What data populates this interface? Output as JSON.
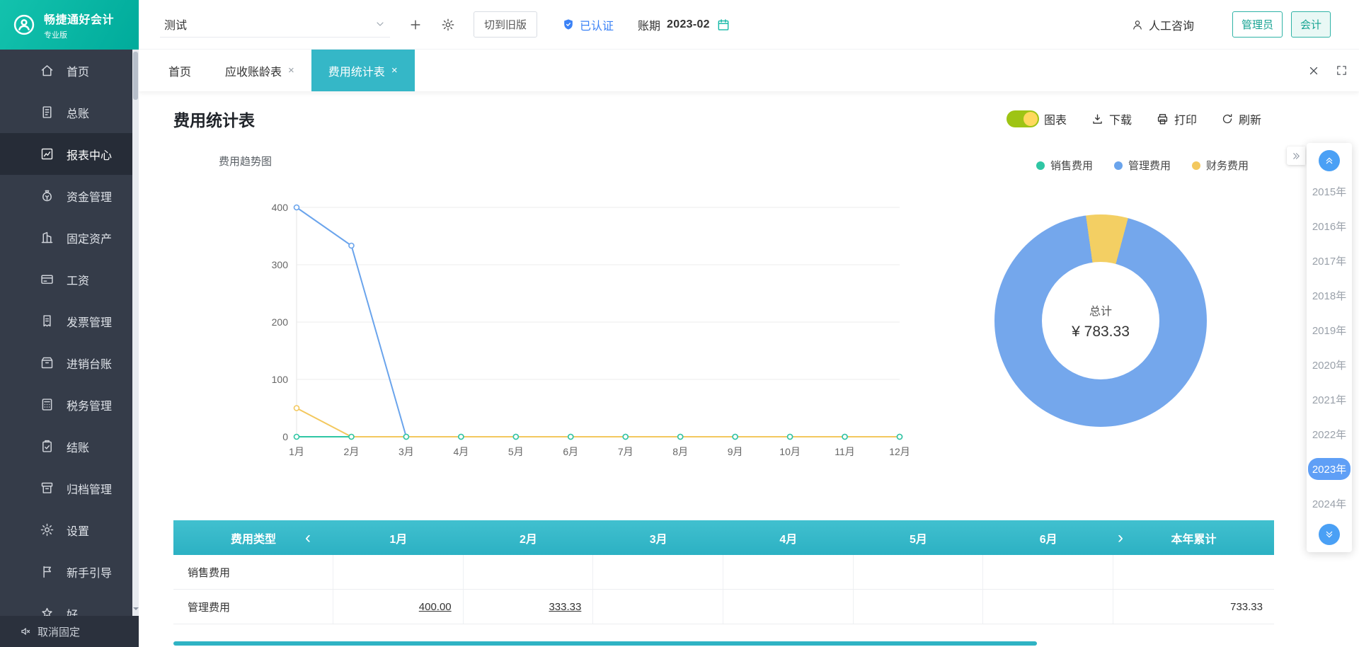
{
  "app": {
    "logo_title": "畅捷通好会计",
    "logo_subtitle": "专业版"
  },
  "sidebar": {
    "items": [
      {
        "id": "home",
        "label": "首页",
        "icon": "home-icon",
        "active": false
      },
      {
        "id": "general-ledger",
        "label": "总账",
        "icon": "ledger-icon",
        "active": false
      },
      {
        "id": "report-center",
        "label": "报表中心",
        "icon": "report-icon",
        "active": true
      },
      {
        "id": "fund-management",
        "label": "资金管理",
        "icon": "fund-icon",
        "active": false
      },
      {
        "id": "fixed-assets",
        "label": "固定资产",
        "icon": "asset-icon",
        "active": false
      },
      {
        "id": "payroll",
        "label": "工资",
        "icon": "salary-icon",
        "active": false
      },
      {
        "id": "invoice-management",
        "label": "发票管理",
        "icon": "invoice-icon",
        "active": false
      },
      {
        "id": "purchase-sale-ledger",
        "label": "进销台账",
        "icon": "inout-icon",
        "active": false
      },
      {
        "id": "tax-management",
        "label": "税务管理",
        "icon": "tax-icon",
        "active": false
      },
      {
        "id": "closing",
        "label": "结账",
        "icon": "closing-icon",
        "active": false
      },
      {
        "id": "archive-management",
        "label": "归档管理",
        "icon": "archive-icon",
        "active": false
      },
      {
        "id": "settings",
        "label": "设置",
        "icon": "settings-icon",
        "active": false
      },
      {
        "id": "beginner-guide",
        "label": "新手引导",
        "icon": "guide-icon",
        "active": false
      },
      {
        "id": "member",
        "label": "好..",
        "icon": "member-icon",
        "active": false
      }
    ],
    "footer_label": "取消固定"
  },
  "topbar": {
    "company_value": "测试",
    "switch_old_label": "切到旧版",
    "certified_label": "已认证",
    "period_label": "账期",
    "period_value": "2023-02",
    "consult_label": "人工咨询",
    "role_admin_label": "管理员",
    "role_accountant_label": "会计"
  },
  "tabs": [
    {
      "id": "home",
      "label": "首页",
      "closable": false,
      "active": false
    },
    {
      "id": "receivable-aging",
      "label": "应收账龄表",
      "closable": true,
      "active": false
    },
    {
      "id": "expense-statistics",
      "label": "费用统计表",
      "closable": true,
      "active": true
    }
  ],
  "toolbar": {
    "page_title": "费用统计表",
    "chart_toggle_label": "图表",
    "chart_toggle_on": true,
    "download_label": "下载",
    "print_label": "打印",
    "refresh_label": "刷新"
  },
  "chart_data": [
    {
      "type": "line",
      "title": "费用趋势图",
      "x": [
        "1月",
        "2月",
        "3月",
        "4月",
        "5月",
        "6月",
        "7月",
        "8月",
        "9月",
        "10月",
        "11月",
        "12月"
      ],
      "series": [
        {
          "name": "销售费用",
          "color": "#2fc6a4",
          "values": [
            0,
            0,
            0,
            0,
            0,
            0,
            0,
            0,
            0,
            0,
            0,
            0
          ]
        },
        {
          "name": "管理费用",
          "color": "#6aa4ec",
          "values": [
            400,
            333.33,
            0,
            0,
            0,
            0,
            0,
            0,
            0,
            0,
            0,
            0
          ]
        },
        {
          "name": "财务费用",
          "color": "#f3c85e",
          "values": [
            50,
            0,
            0,
            0,
            0,
            0,
            0,
            0,
            0,
            0,
            0,
            0
          ]
        }
      ],
      "ylim": [
        0,
        400
      ],
      "yticks": [
        0,
        100,
        200,
        300,
        400
      ],
      "grid": true,
      "legend_position": "top-right"
    },
    {
      "type": "pie",
      "subtype": "donut",
      "center_label": "总计",
      "center_value": "¥ 783.33",
      "slices": [
        {
          "name": "管理费用",
          "value": 733.33,
          "color": "#74a7ec"
        },
        {
          "name": "财务费用",
          "value": 50,
          "color": "#f3cf63"
        }
      ]
    }
  ],
  "table": {
    "headers": [
      "费用类型",
      "1月",
      "2月",
      "3月",
      "4月",
      "5月",
      "6月",
      "本年累计"
    ],
    "prev_arrow": "‹",
    "next_arrow": "›",
    "rows": [
      {
        "name": "销售费用",
        "values": [
          "",
          "",
          "",
          "",
          "",
          "",
          ""
        ],
        "links": [
          false,
          false,
          false,
          false,
          false,
          false,
          false
        ]
      },
      {
        "name": "管理费用",
        "values": [
          "400.00",
          "333.33",
          "",
          "",
          "",
          "",
          "733.33"
        ],
        "links": [
          true,
          true,
          false,
          false,
          false,
          false,
          false
        ]
      }
    ]
  },
  "year_panel": {
    "years": [
      "2015年",
      "2016年",
      "2017年",
      "2018年",
      "2019年",
      "2020年",
      "2021年",
      "2022年",
      "2023年",
      "2024年"
    ],
    "selected": "2023年"
  },
  "colors": {
    "accent_teal": "#2fb3c4",
    "tab_active_teal": "#35b7c7",
    "sidebar_bg": "#353c49",
    "logo_teal": "#00ab9b",
    "certified_blue": "#3b82f6",
    "selected_year_blue": "#5f9ff6",
    "toggle_green": "#9ec414",
    "toggle_knob_yellow": "#ffd95e"
  }
}
